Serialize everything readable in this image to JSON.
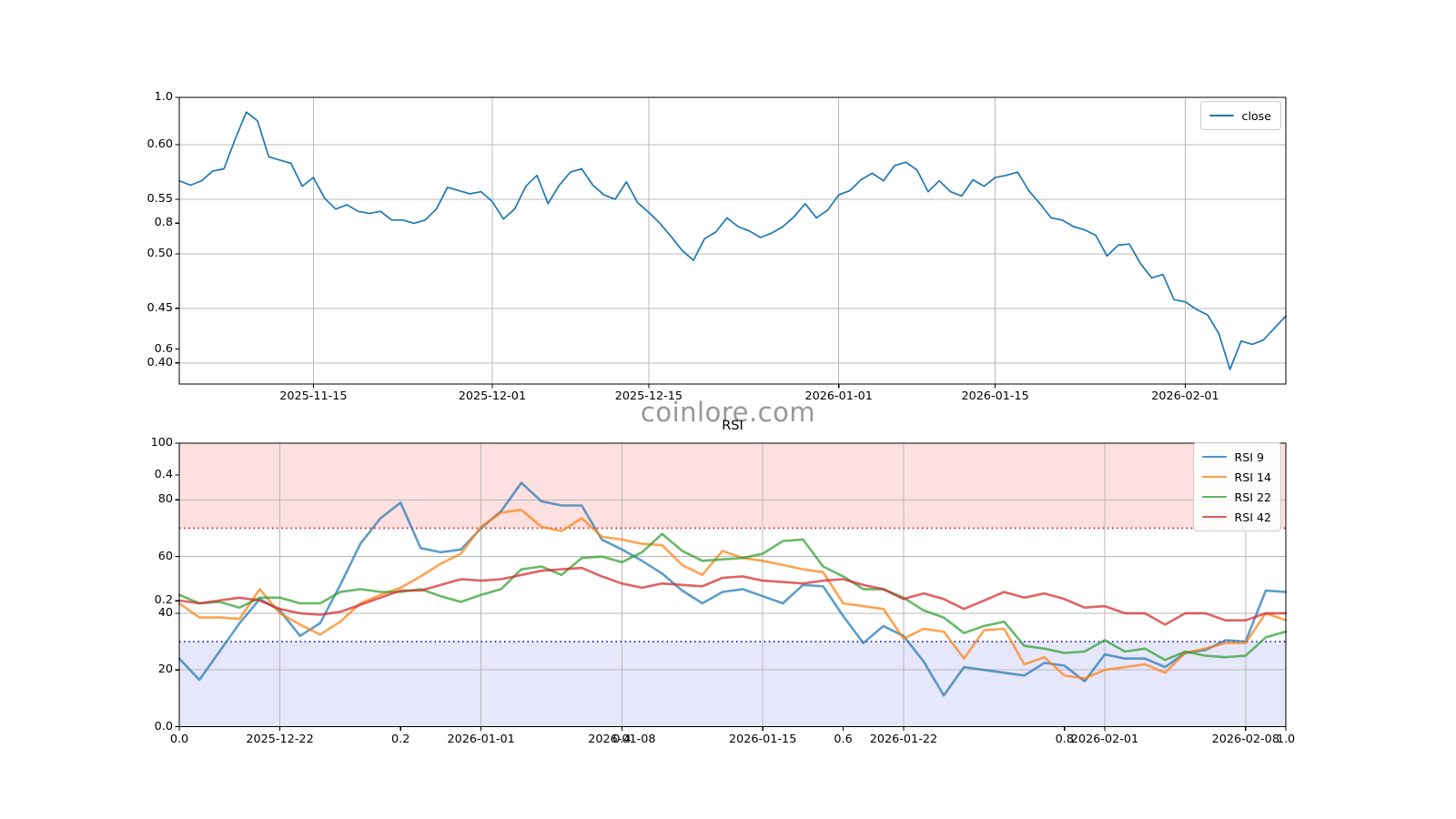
{
  "figure": {
    "watermark": "coinlore.com",
    "background": "#ffffff",
    "grid_color": "#b8b8b8",
    "spine_color": "#000000",
    "tick_label_color": "#000000"
  },
  "background_axis": {
    "y_tick_labels": [
      "1.0",
      "0.8",
      "0.6",
      "0.4",
      "0.2",
      "0.0"
    ],
    "x_tick_labels": [
      "0.0",
      "0.2",
      "0.4",
      "0.6",
      "0.8",
      "1.0"
    ]
  },
  "chart_data": [
    {
      "type": "line",
      "title": "",
      "legend": [
        "close"
      ],
      "legend_loc": "upper right",
      "x_start": "2025-11-03",
      "x_end": "2026-02-10",
      "freq": "daily",
      "grid": true,
      "ylim": [
        0.3806,
        0.6435
      ],
      "x_ticks": [
        {
          "label": "2025-11-15",
          "day": 12
        },
        {
          "label": "2025-12-01",
          "day": 28
        },
        {
          "label": "2025-12-15",
          "day": 42
        },
        {
          "label": "2026-01-01",
          "day": 59
        },
        {
          "label": "2026-01-15",
          "day": 73
        },
        {
          "label": "2026-02-01",
          "day": 90
        }
      ],
      "y_ticks": [
        {
          "label": "0.60",
          "value": 0.6
        },
        {
          "label": "0.55",
          "value": 0.55
        },
        {
          "label": "0.50",
          "value": 0.5
        },
        {
          "label": "0.45",
          "value": 0.45
        },
        {
          "label": "0.40",
          "value": 0.4
        }
      ],
      "series": [
        {
          "name": "close",
          "color": "#1f77b4",
          "width": 1.7,
          "opacity": 1,
          "values": [
            0.567,
            0.563,
            0.567,
            0.576,
            0.578,
            0.605,
            0.63,
            0.622,
            0.589,
            0.586,
            0.583,
            0.562,
            0.57,
            0.551,
            0.541,
            0.545,
            0.539,
            0.537,
            0.539,
            0.531,
            0.531,
            0.528,
            0.531,
            0.541,
            0.561,
            0.558,
            0.555,
            0.557,
            0.548,
            0.532,
            0.541,
            0.562,
            0.572,
            0.546,
            0.563,
            0.575,
            0.578,
            0.563,
            0.554,
            0.55,
            0.566,
            0.547,
            0.538,
            0.528,
            0.516,
            0.503,
            0.494,
            0.514,
            0.52,
            0.533,
            0.525,
            0.521,
            0.515,
            0.519,
            0.525,
            0.534,
            0.546,
            0.533,
            0.54,
            0.554,
            0.558,
            0.568,
            0.574,
            0.567,
            0.581,
            0.584,
            0.577,
            0.557,
            0.567,
            0.557,
            0.553,
            0.568,
            0.562,
            0.57,
            0.572,
            0.575,
            0.558,
            0.546,
            0.533,
            0.531,
            0.525,
            0.522,
            0.517,
            0.498,
            0.508,
            0.509,
            0.491,
            0.478,
            0.481,
            0.458,
            0.456,
            0.449,
            0.444,
            0.427,
            0.394,
            0.42,
            0.417,
            0.421,
            0.432,
            0.443
          ]
        }
      ]
    },
    {
      "type": "line",
      "title": "RSI",
      "legend": [
        "RSI 9",
        "RSI 14",
        "RSI 22",
        "RSI 42"
      ],
      "legend_loc": "upper right",
      "x_start": "2025-12-17",
      "x_end": "2026-02-10",
      "freq": "daily",
      "grid": true,
      "ylim": [
        0,
        100
      ],
      "overbought_level": 70,
      "oversold_level": 30,
      "overbought_band_color": "rgba(255,50,50,0.15)",
      "oversold_band_color": "rgba(70,70,225,0.13)",
      "overbought_line_color": "#e01b24",
      "oversold_line_color": "#2626d8",
      "x_ticks": [
        {
          "label": "2025-12-22",
          "day": 5
        },
        {
          "label": "2026-01-01",
          "day": 15
        },
        {
          "label": "2026-01-08",
          "day": 22
        },
        {
          "label": "2026-01-15",
          "day": 29
        },
        {
          "label": "2026-01-22",
          "day": 36
        },
        {
          "label": "2026-02-01",
          "day": 46
        },
        {
          "label": "2026-02-08",
          "day": 53
        }
      ],
      "y_ticks": [
        {
          "label": "100",
          "value": 100
        },
        {
          "label": "80",
          "value": 80
        },
        {
          "label": "60",
          "value": 60
        },
        {
          "label": "40",
          "value": 40
        },
        {
          "label": "20",
          "value": 20
        }
      ],
      "series": [
        {
          "name": "RSI 9",
          "color": "#1f77b4",
          "width": 2.6,
          "opacity": 0.72,
          "values": [
            24,
            16.5,
            26.5,
            36.5,
            45,
            41,
            32,
            36.5,
            50,
            64.5,
            73.5,
            79,
            63,
            61.5,
            62.5,
            70,
            76,
            86,
            79.5,
            78,
            78,
            66,
            62.5,
            58.5,
            54,
            48,
            43.5,
            47.5,
            48.5,
            46,
            43.5,
            50,
            49.5,
            39,
            29.5,
            35.5,
            32,
            23,
            11,
            21,
            20,
            19,
            18,
            22.5,
            21.5,
            16,
            25.5,
            24,
            24,
            21,
            26,
            27,
            30.5,
            30,
            48,
            47.5
          ]
        },
        {
          "name": "RSI 14",
          "color": "#ff7f0e",
          "width": 2.6,
          "opacity": 0.72,
          "values": [
            43.5,
            38.5,
            38.5,
            38,
            48.5,
            40,
            36,
            32.5,
            37,
            43.5,
            46.5,
            49,
            53,
            57.5,
            61,
            70.5,
            75.5,
            76.5,
            70.5,
            69,
            73.5,
            67,
            66,
            64.5,
            64,
            57,
            53.5,
            62,
            59.5,
            58.5,
            57,
            55.5,
            54.5,
            43.5,
            42.5,
            41.5,
            31,
            34.5,
            33.5,
            24,
            34,
            34.5,
            22,
            24.5,
            18,
            17,
            20,
            21,
            22,
            19,
            26,
            27.5,
            29.5,
            29.5,
            40,
            37.5
          ]
        },
        {
          "name": "RSI 22",
          "color": "#2ca02c",
          "width": 2.6,
          "opacity": 0.72,
          "values": [
            46.5,
            43.5,
            44,
            42,
            45.5,
            45.5,
            43.5,
            43.5,
            47.5,
            48.5,
            47.5,
            47.5,
            48.5,
            46,
            44,
            46.5,
            48.5,
            55.5,
            56.5,
            53.5,
            59.5,
            60,
            58,
            61.5,
            68,
            62,
            58.5,
            59,
            59.5,
            61,
            65.5,
            66,
            56.5,
            53,
            48.5,
            48.5,
            45.5,
            41,
            38.5,
            33,
            35.5,
            37,
            28.5,
            27.5,
            26,
            26.5,
            30.5,
            26.5,
            27.5,
            23.5,
            26.5,
            25,
            24.5,
            25,
            31.5,
            33.5
          ]
        },
        {
          "name": "RSI 42",
          "color": "#d62728",
          "width": 2.6,
          "opacity": 0.72,
          "values": [
            44.5,
            43.5,
            44.5,
            45.5,
            44.5,
            41.5,
            40,
            39.5,
            40.5,
            43,
            45.5,
            48,
            48,
            50,
            52,
            51.5,
            52,
            53.5,
            55,
            55.5,
            56,
            53,
            50.5,
            49,
            50.5,
            50,
            49.5,
            52.5,
            53,
            51.5,
            51,
            50.5,
            51.5,
            52,
            50,
            48.5,
            45,
            47,
            45,
            41.5,
            44.5,
            47.5,
            45.5,
            47,
            45,
            42,
            42.5,
            40,
            40,
            36,
            40,
            40,
            37.5,
            37.5,
            40,
            40
          ]
        }
      ]
    }
  ]
}
